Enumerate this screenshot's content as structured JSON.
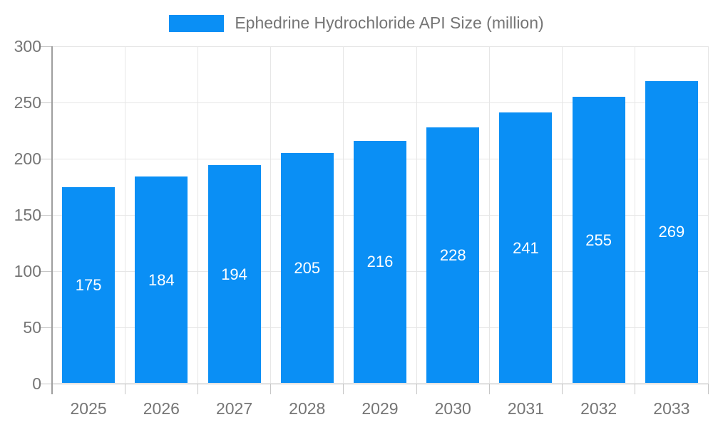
{
  "chart_data": {
    "type": "bar",
    "title": "Ephedrine Hydrochloride API Size (million)",
    "legend": "Ephedrine Hydrochloride API Size (million)",
    "legend_position": "top",
    "categories": [
      "2025",
      "2026",
      "2027",
      "2028",
      "2029",
      "2030",
      "2031",
      "2032",
      "2033"
    ],
    "values": [
      175,
      184,
      194,
      205,
      216,
      228,
      241,
      255,
      269
    ],
    "xlabel": "",
    "ylabel": "",
    "ylim": [
      0,
      300
    ],
    "yticks": [
      0,
      50,
      100,
      150,
      200,
      250,
      300
    ],
    "grid": true,
    "value_label_position": "inside-center"
  },
  "colors": {
    "bar": "#0a8ff5",
    "value_label": "#ffffff",
    "axis_text": "#757575",
    "gridline": "#e6e6e6",
    "tick": "#c6c6c6",
    "axis_line": "#9e9e9e",
    "baseline": "#b0b0b0",
    "background": "#ffffff"
  }
}
